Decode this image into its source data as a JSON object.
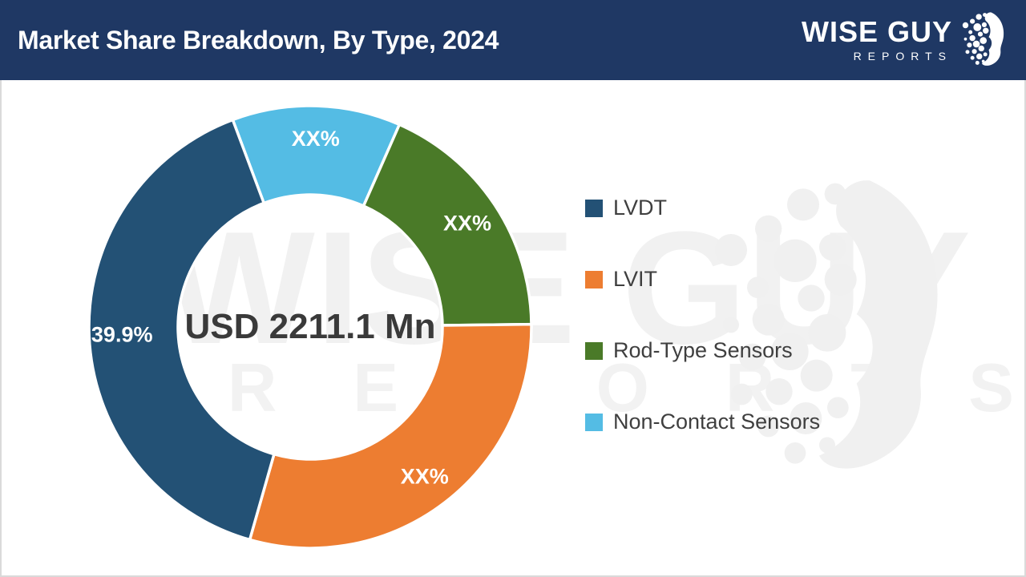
{
  "header": {
    "title": "Market Share Breakdown, By Type, 2024",
    "logo": {
      "line1": "WISE GUY",
      "line2": "REPORTS"
    }
  },
  "watermark": {
    "line1": "WISE GUY",
    "line2": "REPORTS"
  },
  "chart_data": {
    "type": "pie",
    "donut": true,
    "title": "Market Share Breakdown, By Type, 2024",
    "center_label": "USD 2211.1 Mn",
    "rotation_deg": -20.5,
    "inner_radius_ratio": 0.6,
    "legend_position": "right",
    "series": [
      {
        "name": "Non-Contact Sensors",
        "value": 12.3,
        "display_label": "XX%",
        "color": "#54BCE4"
      },
      {
        "name": "Rod-Type Sensors",
        "value": 18.2,
        "display_label": "XX%",
        "color": "#4A7A28"
      },
      {
        "name": "LVIT",
        "value": 29.6,
        "display_label": "XX%",
        "color": "#ED7D31"
      },
      {
        "name": "LVDT",
        "value": 39.9,
        "display_label": "39.9%",
        "color": "#235175"
      }
    ],
    "legend": [
      {
        "label": "LVDT",
        "color": "#235175"
      },
      {
        "label": "LVIT",
        "color": "#ED7D31"
      },
      {
        "label": "Rod-Type Sensors",
        "color": "#4A7A28"
      },
      {
        "label": "Non-Contact Sensors",
        "color": "#54BCE4"
      }
    ]
  },
  "colors": {
    "header_bg": "#1F3864",
    "content_border": "#DADADA",
    "center_text": "#3A3A3A",
    "watermark": "#F1F1F1"
  }
}
